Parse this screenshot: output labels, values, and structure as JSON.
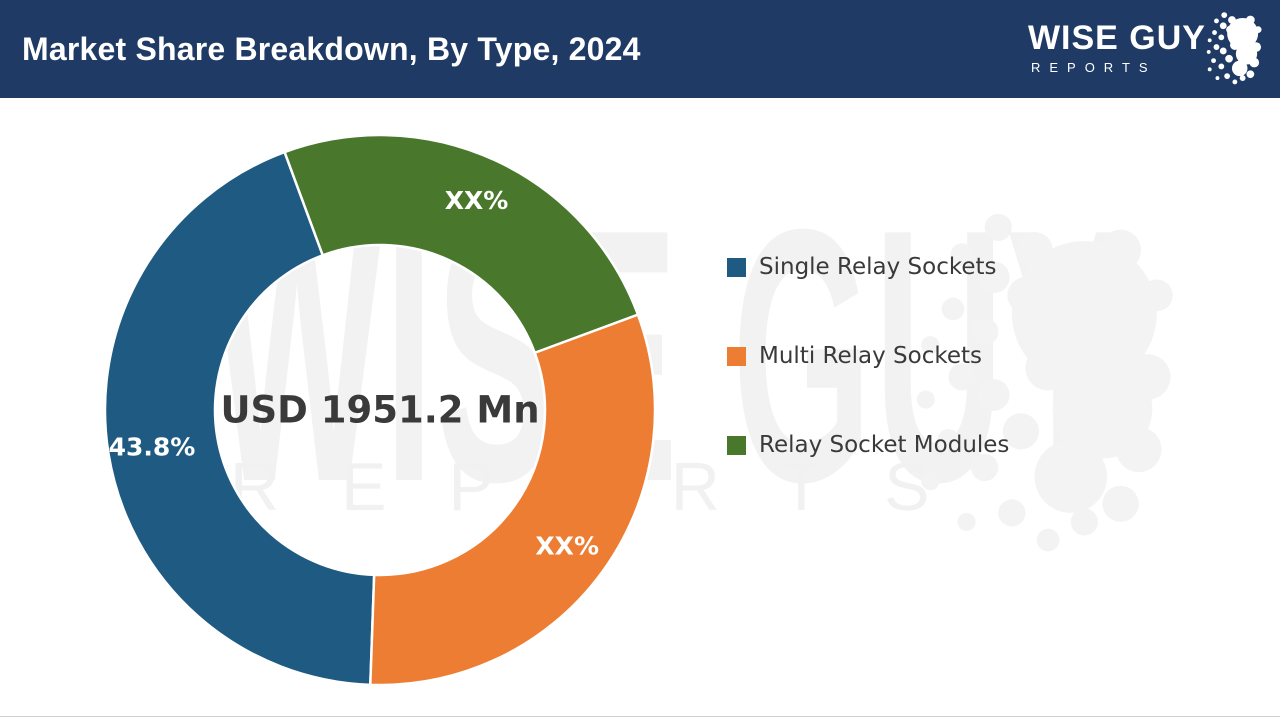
{
  "header": {
    "title": "Market Share Breakdown, By Type, 2024",
    "logo": {
      "line1": "WISE GUY",
      "line2": "REPORTS"
    }
  },
  "watermark": {
    "line1": "WISE GUY",
    "line2": "REPORTS"
  },
  "colors": {
    "header_bg": "#1f3a64",
    "blue": "#1f5a82",
    "orange": "#ed7d32",
    "green": "#49772c",
    "text_dark": "#3a3a3a"
  },
  "chart_data": {
    "type": "pie",
    "subtype": "donut",
    "title": "Market Share Breakdown, By Type, 2024",
    "center_label": "USD 1951.2 Mn",
    "legend_position": "right",
    "start_angle_deg": 110.3,
    "direction": "counterclockwise",
    "inner_radius_ratio": 0.6,
    "segments": [
      {
        "id": "single-relay-sockets",
        "name": "Single Relay Sockets",
        "pct_label": "43.8%",
        "value": 43.8,
        "color": "#1f5a82"
      },
      {
        "id": "multi-relay-sockets",
        "name": "Multi Relay Sockets",
        "pct_label": "XX%",
        "value": 31.2,
        "color": "#ed7d32"
      },
      {
        "id": "relay-socket-modules",
        "name": "Relay Socket Modules",
        "pct_label": "XX%",
        "value": 25.0,
        "color": "#49772c"
      }
    ]
  }
}
